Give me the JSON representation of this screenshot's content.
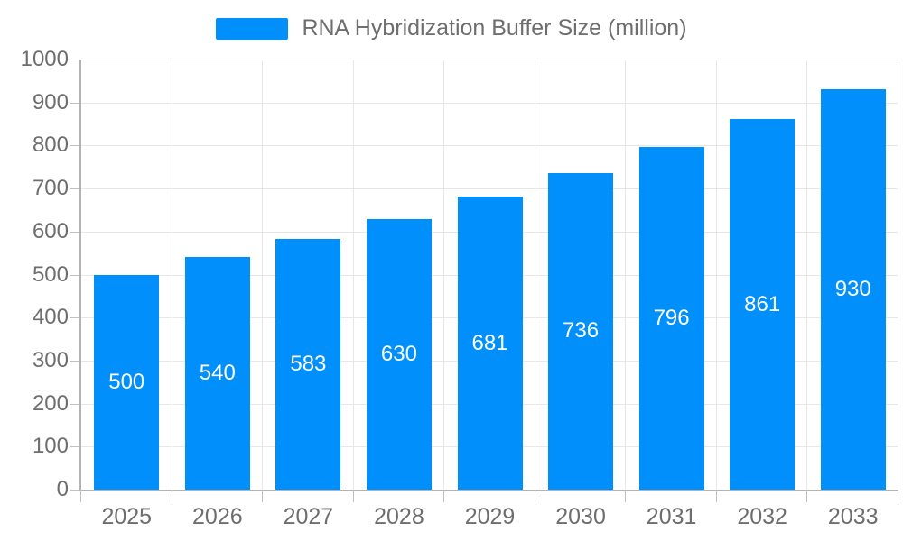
{
  "legend": {
    "label": "RNA Hybridization Buffer Size (million)"
  },
  "colors": {
    "bar": "#008FFB",
    "grid": "#e7e7e7",
    "axis": "#b3b3b3",
    "tick": "#c0c0c0",
    "text": "#6e6e6e",
    "valueLabel": "#ffffff",
    "bg": "#ffffff"
  },
  "chart_data": {
    "type": "bar",
    "title": "RNA Hybridization Buffer Size (million)",
    "categories": [
      "2025",
      "2026",
      "2027",
      "2028",
      "2029",
      "2030",
      "2031",
      "2032",
      "2033"
    ],
    "series": [
      {
        "name": "RNA Hybridization Buffer Size (million)",
        "values": [
          500,
          540,
          583,
          630,
          681,
          736,
          796,
          861,
          930
        ]
      }
    ],
    "xlabel": "",
    "ylabel": "",
    "ylim": [
      0,
      1000
    ],
    "yticks": [
      0,
      100,
      200,
      300,
      400,
      500,
      600,
      700,
      800,
      900,
      1000
    ],
    "grid": true,
    "legend_position": "top",
    "data_labels": true
  }
}
